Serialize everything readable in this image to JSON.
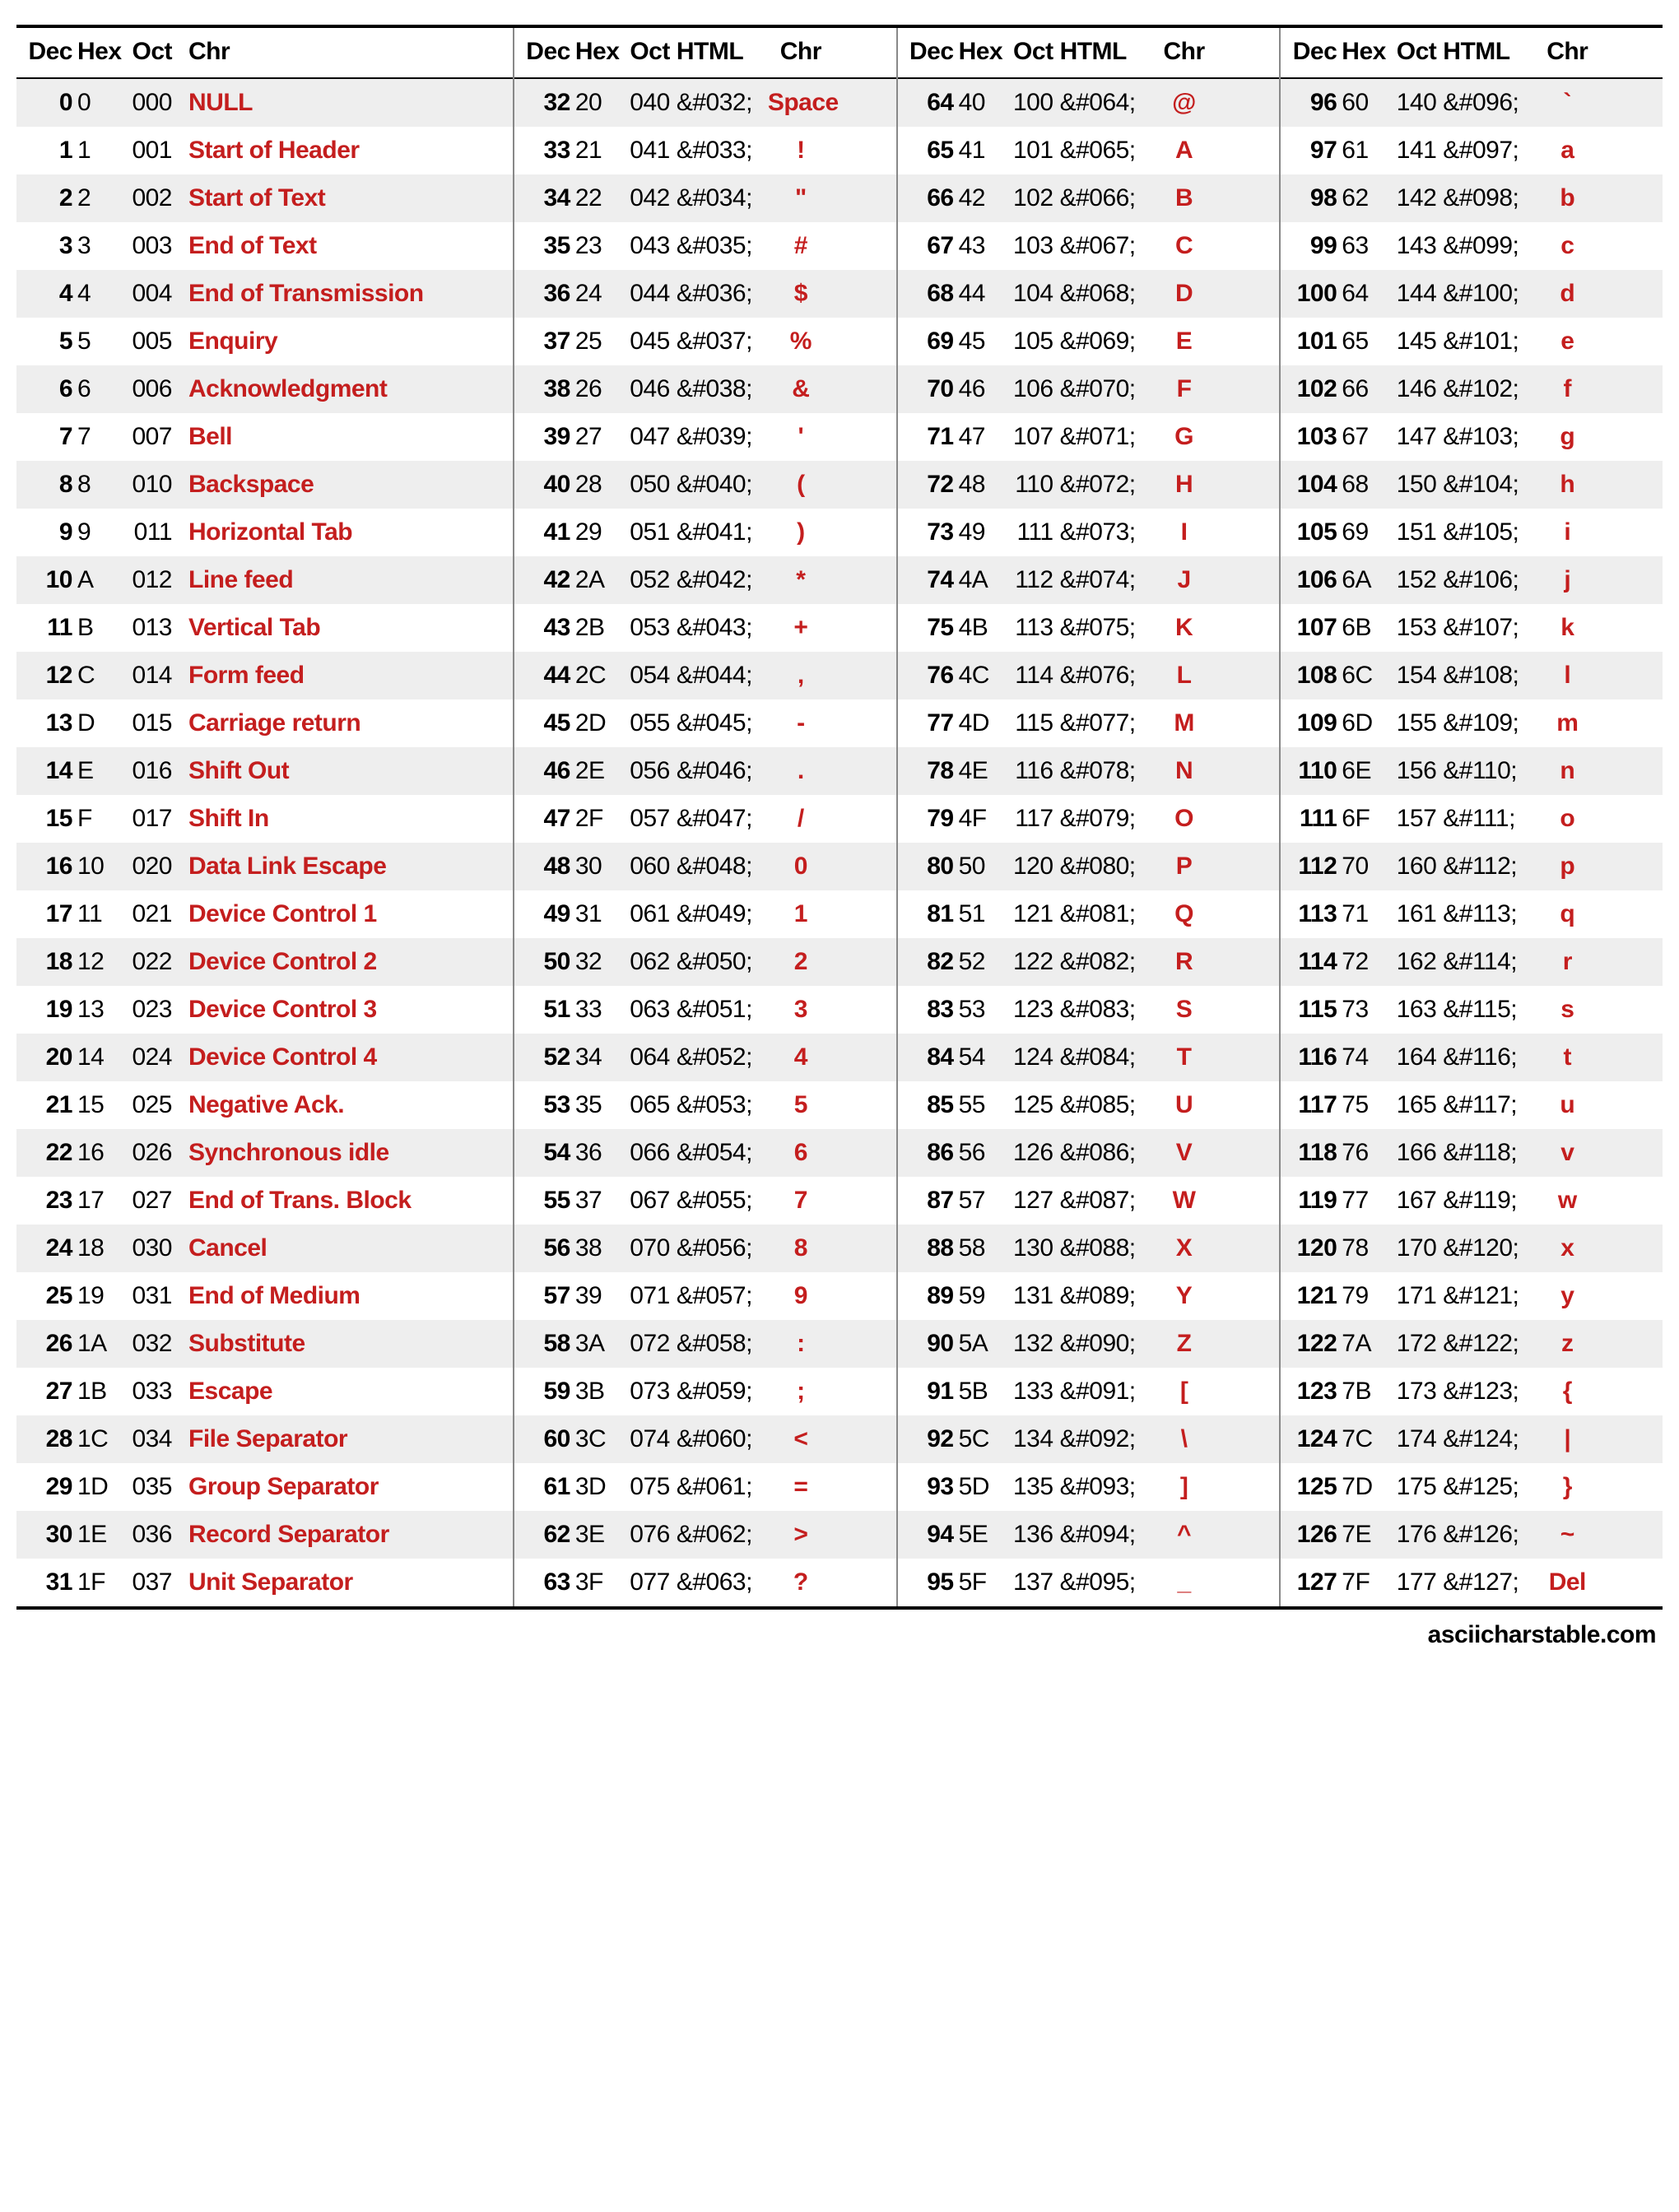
{
  "colors": {
    "accent": "#c41e1e",
    "stripe": "#eeeeee",
    "fg": "#000000",
    "bg": "#ffffff"
  },
  "footer": "asciicharstable.com",
  "block0": {
    "headers": {
      "dec": "Dec",
      "hex": "Hex",
      "oct": "Oct",
      "chr": "Chr"
    },
    "rows": [
      {
        "dec": "0",
        "hex": "0",
        "oct": "000",
        "chr": "NULL"
      },
      {
        "dec": "1",
        "hex": "1",
        "oct": "001",
        "chr": "Start of Header"
      },
      {
        "dec": "2",
        "hex": "2",
        "oct": "002",
        "chr": "Start of Text"
      },
      {
        "dec": "3",
        "hex": "3",
        "oct": "003",
        "chr": "End of Text"
      },
      {
        "dec": "4",
        "hex": "4",
        "oct": "004",
        "chr": "End of Transmission"
      },
      {
        "dec": "5",
        "hex": "5",
        "oct": "005",
        "chr": "Enquiry"
      },
      {
        "dec": "6",
        "hex": "6",
        "oct": "006",
        "chr": "Acknowledgment"
      },
      {
        "dec": "7",
        "hex": "7",
        "oct": "007",
        "chr": "Bell"
      },
      {
        "dec": "8",
        "hex": "8",
        "oct": "010",
        "chr": "Backspace"
      },
      {
        "dec": "9",
        "hex": "9",
        "oct": "011",
        "chr": "Horizontal Tab"
      },
      {
        "dec": "10",
        "hex": "A",
        "oct": "012",
        "chr": "Line feed"
      },
      {
        "dec": "11",
        "hex": "B",
        "oct": "013",
        "chr": "Vertical Tab"
      },
      {
        "dec": "12",
        "hex": "C",
        "oct": "014",
        "chr": "Form feed"
      },
      {
        "dec": "13",
        "hex": "D",
        "oct": "015",
        "chr": "Carriage return"
      },
      {
        "dec": "14",
        "hex": "E",
        "oct": "016",
        "chr": "Shift Out"
      },
      {
        "dec": "15",
        "hex": "F",
        "oct": "017",
        "chr": "Shift In"
      },
      {
        "dec": "16",
        "hex": "10",
        "oct": "020",
        "chr": "Data Link Escape"
      },
      {
        "dec": "17",
        "hex": "11",
        "oct": "021",
        "chr": "Device Control 1"
      },
      {
        "dec": "18",
        "hex": "12",
        "oct": "022",
        "chr": "Device Control 2"
      },
      {
        "dec": "19",
        "hex": "13",
        "oct": "023",
        "chr": "Device Control 3"
      },
      {
        "dec": "20",
        "hex": "14",
        "oct": "024",
        "chr": "Device Control 4"
      },
      {
        "dec": "21",
        "hex": "15",
        "oct": "025",
        "chr": "Negative Ack."
      },
      {
        "dec": "22",
        "hex": "16",
        "oct": "026",
        "chr": "Synchronous idle"
      },
      {
        "dec": "23",
        "hex": "17",
        "oct": "027",
        "chr": "End of Trans. Block"
      },
      {
        "dec": "24",
        "hex": "18",
        "oct": "030",
        "chr": "Cancel"
      },
      {
        "dec": "25",
        "hex": "19",
        "oct": "031",
        "chr": "End of Medium"
      },
      {
        "dec": "26",
        "hex": "1A",
        "oct": "032",
        "chr": "Substitute"
      },
      {
        "dec": "27",
        "hex": "1B",
        "oct": "033",
        "chr": "Escape"
      },
      {
        "dec": "28",
        "hex": "1C",
        "oct": "034",
        "chr": "File Separator"
      },
      {
        "dec": "29",
        "hex": "1D",
        "oct": "035",
        "chr": "Group Separator"
      },
      {
        "dec": "30",
        "hex": "1E",
        "oct": "036",
        "chr": "Record Separator"
      },
      {
        "dec": "31",
        "hex": "1F",
        "oct": "037",
        "chr": "Unit Separator"
      }
    ]
  },
  "block1": {
    "headers": {
      "dec": "Dec",
      "hex": "Hex",
      "oct": "Oct",
      "html": "HTML",
      "chr": "Chr"
    },
    "rows": [
      {
        "dec": "32",
        "hex": "20",
        "oct": "040",
        "html": "&#032;",
        "chr": "Space"
      },
      {
        "dec": "33",
        "hex": "21",
        "oct": "041",
        "html": "&#033;",
        "chr": "!"
      },
      {
        "dec": "34",
        "hex": "22",
        "oct": "042",
        "html": "&#034;",
        "chr": "\""
      },
      {
        "dec": "35",
        "hex": "23",
        "oct": "043",
        "html": "&#035;",
        "chr": "#"
      },
      {
        "dec": "36",
        "hex": "24",
        "oct": "044",
        "html": "&#036;",
        "chr": "$"
      },
      {
        "dec": "37",
        "hex": "25",
        "oct": "045",
        "html": "&#037;",
        "chr": "%"
      },
      {
        "dec": "38",
        "hex": "26",
        "oct": "046",
        "html": "&#038;",
        "chr": "&"
      },
      {
        "dec": "39",
        "hex": "27",
        "oct": "047",
        "html": "&#039;",
        "chr": "'"
      },
      {
        "dec": "40",
        "hex": "28",
        "oct": "050",
        "html": "&#040;",
        "chr": "("
      },
      {
        "dec": "41",
        "hex": "29",
        "oct": "051",
        "html": "&#041;",
        "chr": ")"
      },
      {
        "dec": "42",
        "hex": "2A",
        "oct": "052",
        "html": "&#042;",
        "chr": "*"
      },
      {
        "dec": "43",
        "hex": "2B",
        "oct": "053",
        "html": "&#043;",
        "chr": "+"
      },
      {
        "dec": "44",
        "hex": "2C",
        "oct": "054",
        "html": "&#044;",
        "chr": ","
      },
      {
        "dec": "45",
        "hex": "2D",
        "oct": "055",
        "html": "&#045;",
        "chr": "-"
      },
      {
        "dec": "46",
        "hex": "2E",
        "oct": "056",
        "html": "&#046;",
        "chr": "."
      },
      {
        "dec": "47",
        "hex": "2F",
        "oct": "057",
        "html": "&#047;",
        "chr": "/"
      },
      {
        "dec": "48",
        "hex": "30",
        "oct": "060",
        "html": "&#048;",
        "chr": "0"
      },
      {
        "dec": "49",
        "hex": "31",
        "oct": "061",
        "html": "&#049;",
        "chr": "1"
      },
      {
        "dec": "50",
        "hex": "32",
        "oct": "062",
        "html": "&#050;",
        "chr": "2"
      },
      {
        "dec": "51",
        "hex": "33",
        "oct": "063",
        "html": "&#051;",
        "chr": "3"
      },
      {
        "dec": "52",
        "hex": "34",
        "oct": "064",
        "html": "&#052;",
        "chr": "4"
      },
      {
        "dec": "53",
        "hex": "35",
        "oct": "065",
        "html": "&#053;",
        "chr": "5"
      },
      {
        "dec": "54",
        "hex": "36",
        "oct": "066",
        "html": "&#054;",
        "chr": "6"
      },
      {
        "dec": "55",
        "hex": "37",
        "oct": "067",
        "html": "&#055;",
        "chr": "7"
      },
      {
        "dec": "56",
        "hex": "38",
        "oct": "070",
        "html": "&#056;",
        "chr": "8"
      },
      {
        "dec": "57",
        "hex": "39",
        "oct": "071",
        "html": "&#057;",
        "chr": "9"
      },
      {
        "dec": "58",
        "hex": "3A",
        "oct": "072",
        "html": "&#058;",
        "chr": ":"
      },
      {
        "dec": "59",
        "hex": "3B",
        "oct": "073",
        "html": "&#059;",
        "chr": ";"
      },
      {
        "dec": "60",
        "hex": "3C",
        "oct": "074",
        "html": "&#060;",
        "chr": "<"
      },
      {
        "dec": "61",
        "hex": "3D",
        "oct": "075",
        "html": "&#061;",
        "chr": "="
      },
      {
        "dec": "62",
        "hex": "3E",
        "oct": "076",
        "html": "&#062;",
        "chr": ">"
      },
      {
        "dec": "63",
        "hex": "3F",
        "oct": "077",
        "html": "&#063;",
        "chr": "?"
      }
    ]
  },
  "block2": {
    "headers": {
      "dec": "Dec",
      "hex": "Hex",
      "oct": "Oct",
      "html": "HTML",
      "chr": "Chr"
    },
    "rows": [
      {
        "dec": "64",
        "hex": "40",
        "oct": "100",
        "html": "&#064;",
        "chr": "@"
      },
      {
        "dec": "65",
        "hex": "41",
        "oct": "101",
        "html": "&#065;",
        "chr": "A"
      },
      {
        "dec": "66",
        "hex": "42",
        "oct": "102",
        "html": "&#066;",
        "chr": "B"
      },
      {
        "dec": "67",
        "hex": "43",
        "oct": "103",
        "html": "&#067;",
        "chr": "C"
      },
      {
        "dec": "68",
        "hex": "44",
        "oct": "104",
        "html": "&#068;",
        "chr": "D"
      },
      {
        "dec": "69",
        "hex": "45",
        "oct": "105",
        "html": "&#069;",
        "chr": "E"
      },
      {
        "dec": "70",
        "hex": "46",
        "oct": "106",
        "html": "&#070;",
        "chr": "F"
      },
      {
        "dec": "71",
        "hex": "47",
        "oct": "107",
        "html": "&#071;",
        "chr": "G"
      },
      {
        "dec": "72",
        "hex": "48",
        "oct": "110",
        "html": "&#072;",
        "chr": "H"
      },
      {
        "dec": "73",
        "hex": "49",
        "oct": "111",
        "html": "&#073;",
        "chr": "I"
      },
      {
        "dec": "74",
        "hex": "4A",
        "oct": "112",
        "html": "&#074;",
        "chr": "J"
      },
      {
        "dec": "75",
        "hex": "4B",
        "oct": "113",
        "html": "&#075;",
        "chr": "K"
      },
      {
        "dec": "76",
        "hex": "4C",
        "oct": "114",
        "html": "&#076;",
        "chr": "L"
      },
      {
        "dec": "77",
        "hex": "4D",
        "oct": "115",
        "html": "&#077;",
        "chr": "M"
      },
      {
        "dec": "78",
        "hex": "4E",
        "oct": "116",
        "html": "&#078;",
        "chr": "N"
      },
      {
        "dec": "79",
        "hex": "4F",
        "oct": "117",
        "html": "&#079;",
        "chr": "O"
      },
      {
        "dec": "80",
        "hex": "50",
        "oct": "120",
        "html": "&#080;",
        "chr": "P"
      },
      {
        "dec": "81",
        "hex": "51",
        "oct": "121",
        "html": "&#081;",
        "chr": "Q"
      },
      {
        "dec": "82",
        "hex": "52",
        "oct": "122",
        "html": "&#082;",
        "chr": "R"
      },
      {
        "dec": "83",
        "hex": "53",
        "oct": "123",
        "html": "&#083;",
        "chr": "S"
      },
      {
        "dec": "84",
        "hex": "54",
        "oct": "124",
        "html": "&#084;",
        "chr": "T"
      },
      {
        "dec": "85",
        "hex": "55",
        "oct": "125",
        "html": "&#085;",
        "chr": "U"
      },
      {
        "dec": "86",
        "hex": "56",
        "oct": "126",
        "html": "&#086;",
        "chr": "V"
      },
      {
        "dec": "87",
        "hex": "57",
        "oct": "127",
        "html": "&#087;",
        "chr": "W"
      },
      {
        "dec": "88",
        "hex": "58",
        "oct": "130",
        "html": "&#088;",
        "chr": "X"
      },
      {
        "dec": "89",
        "hex": "59",
        "oct": "131",
        "html": "&#089;",
        "chr": "Y"
      },
      {
        "dec": "90",
        "hex": "5A",
        "oct": "132",
        "html": "&#090;",
        "chr": "Z"
      },
      {
        "dec": "91",
        "hex": "5B",
        "oct": "133",
        "html": "&#091;",
        "chr": "["
      },
      {
        "dec": "92",
        "hex": "5C",
        "oct": "134",
        "html": "&#092;",
        "chr": "\\"
      },
      {
        "dec": "93",
        "hex": "5D",
        "oct": "135",
        "html": "&#093;",
        "chr": "]"
      },
      {
        "dec": "94",
        "hex": "5E",
        "oct": "136",
        "html": "&#094;",
        "chr": "^"
      },
      {
        "dec": "95",
        "hex": "5F",
        "oct": "137",
        "html": "&#095;",
        "chr": "_"
      }
    ]
  },
  "block3": {
    "headers": {
      "dec": "Dec",
      "hex": "Hex",
      "oct": "Oct",
      "html": "HTML",
      "chr": "Chr"
    },
    "rows": [
      {
        "dec": "96",
        "hex": "60",
        "oct": "140",
        "html": "&#096;",
        "chr": "`"
      },
      {
        "dec": "97",
        "hex": "61",
        "oct": "141",
        "html": "&#097;",
        "chr": "a"
      },
      {
        "dec": "98",
        "hex": "62",
        "oct": "142",
        "html": "&#098;",
        "chr": "b"
      },
      {
        "dec": "99",
        "hex": "63",
        "oct": "143",
        "html": "&#099;",
        "chr": "c"
      },
      {
        "dec": "100",
        "hex": "64",
        "oct": "144",
        "html": "&#100;",
        "chr": "d"
      },
      {
        "dec": "101",
        "hex": "65",
        "oct": "145",
        "html": "&#101;",
        "chr": "e"
      },
      {
        "dec": "102",
        "hex": "66",
        "oct": "146",
        "html": "&#102;",
        "chr": "f"
      },
      {
        "dec": "103",
        "hex": "67",
        "oct": "147",
        "html": "&#103;",
        "chr": "g"
      },
      {
        "dec": "104",
        "hex": "68",
        "oct": "150",
        "html": "&#104;",
        "chr": "h"
      },
      {
        "dec": "105",
        "hex": "69",
        "oct": "151",
        "html": "&#105;",
        "chr": "i"
      },
      {
        "dec": "106",
        "hex": "6A",
        "oct": "152",
        "html": "&#106;",
        "chr": "j"
      },
      {
        "dec": "107",
        "hex": "6B",
        "oct": "153",
        "html": "&#107;",
        "chr": "k"
      },
      {
        "dec": "108",
        "hex": "6C",
        "oct": "154",
        "html": "&#108;",
        "chr": "l"
      },
      {
        "dec": "109",
        "hex": "6D",
        "oct": "155",
        "html": "&#109;",
        "chr": "m"
      },
      {
        "dec": "110",
        "hex": "6E",
        "oct": "156",
        "html": "&#110;",
        "chr": "n"
      },
      {
        "dec": "111",
        "hex": "6F",
        "oct": "157",
        "html": "&#111;",
        "chr": "o"
      },
      {
        "dec": "112",
        "hex": "70",
        "oct": "160",
        "html": "&#112;",
        "chr": "p"
      },
      {
        "dec": "113",
        "hex": "71",
        "oct": "161",
        "html": "&#113;",
        "chr": "q"
      },
      {
        "dec": "114",
        "hex": "72",
        "oct": "162",
        "html": "&#114;",
        "chr": "r"
      },
      {
        "dec": "115",
        "hex": "73",
        "oct": "163",
        "html": "&#115;",
        "chr": "s"
      },
      {
        "dec": "116",
        "hex": "74",
        "oct": "164",
        "html": "&#116;",
        "chr": "t"
      },
      {
        "dec": "117",
        "hex": "75",
        "oct": "165",
        "html": "&#117;",
        "chr": "u"
      },
      {
        "dec": "118",
        "hex": "76",
        "oct": "166",
        "html": "&#118;",
        "chr": "v"
      },
      {
        "dec": "119",
        "hex": "77",
        "oct": "167",
        "html": "&#119;",
        "chr": "w"
      },
      {
        "dec": "120",
        "hex": "78",
        "oct": "170",
        "html": "&#120;",
        "chr": "x"
      },
      {
        "dec": "121",
        "hex": "79",
        "oct": "171",
        "html": "&#121;",
        "chr": "y"
      },
      {
        "dec": "122",
        "hex": "7A",
        "oct": "172",
        "html": "&#122;",
        "chr": "z"
      },
      {
        "dec": "123",
        "hex": "7B",
        "oct": "173",
        "html": "&#123;",
        "chr": "{"
      },
      {
        "dec": "124",
        "hex": "7C",
        "oct": "174",
        "html": "&#124;",
        "chr": "|"
      },
      {
        "dec": "125",
        "hex": "7D",
        "oct": "175",
        "html": "&#125;",
        "chr": "}"
      },
      {
        "dec": "126",
        "hex": "7E",
        "oct": "176",
        "html": "&#126;",
        "chr": "~"
      },
      {
        "dec": "127",
        "hex": "7F",
        "oct": "177",
        "html": "&#127;",
        "chr": "Del"
      }
    ]
  }
}
